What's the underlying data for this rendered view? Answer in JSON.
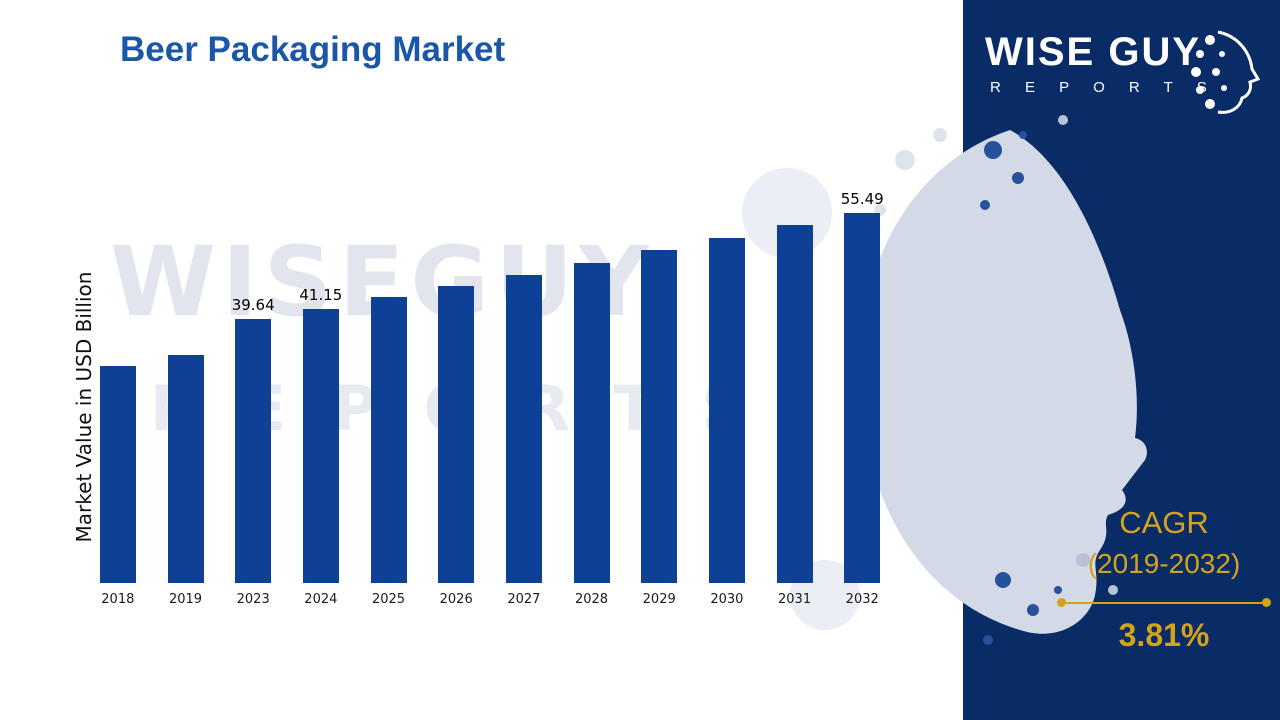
{
  "title": "Beer Packaging Market",
  "watermark": {
    "line1": "WISEGUY",
    "line2": "REPORTS"
  },
  "logo": {
    "line1": "WISE GUY",
    "line2": "R E P O R T S"
  },
  "cagr": {
    "label": "CAGR",
    "range": "(2019-2032)",
    "value": "3.81%"
  },
  "colors": {
    "bar": "#0e4095",
    "title_blue": "#1a57a8",
    "panel_navy": "#0a2c66",
    "accent_gold": "#d2a31b",
    "watermark_gray": "#e2e5ee"
  },
  "chart_data": {
    "type": "bar",
    "title": "Beer Packaging Market",
    "xlabel": "",
    "ylabel": "Market Value in USD Billion",
    "categories": [
      "2018",
      "2019",
      "2023",
      "2024",
      "2025",
      "2026",
      "2027",
      "2028",
      "2029",
      "2030",
      "2031",
      "2032"
    ],
    "values": [
      32.5,
      34.2,
      39.64,
      41.15,
      42.9,
      44.5,
      46.2,
      48.0,
      49.9,
      51.8,
      53.7,
      55.49
    ],
    "data_labels": [
      "",
      "",
      "39.64",
      "41.15",
      "",
      "",
      "",
      "",
      "",
      "",
      "",
      "55.49"
    ],
    "ylim": [
      0,
      60
    ],
    "grid": false,
    "legend": false,
    "units": "USD Billion"
  }
}
